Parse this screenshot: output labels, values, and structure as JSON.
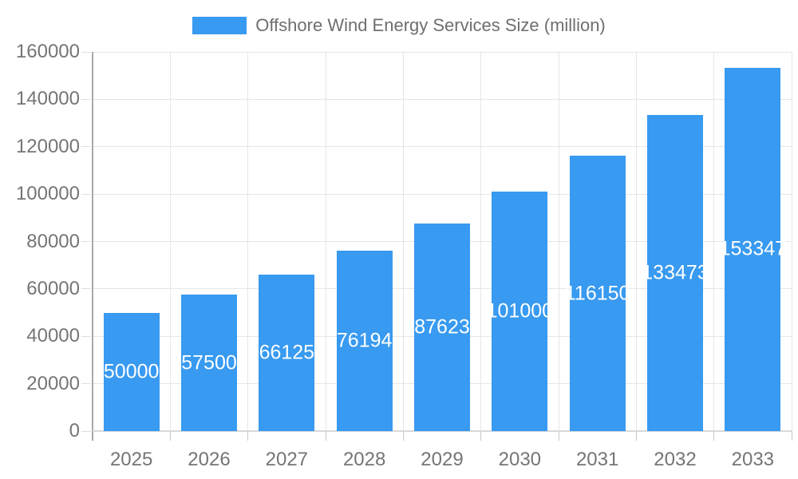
{
  "legend": {
    "label": "Offshore Wind Energy Services Size (million)"
  },
  "chart_data": {
    "type": "bar",
    "title": "Offshore Wind Energy Services Size (million)",
    "categories": [
      "2025",
      "2026",
      "2027",
      "2028",
      "2029",
      "2030",
      "2031",
      "2032",
      "2033"
    ],
    "values": [
      50000,
      57500,
      66125,
      76194,
      87623,
      101000,
      116150,
      133473,
      153347
    ],
    "series": [
      {
        "name": "Offshore Wind Energy Services Size (million)",
        "values": [
          50000,
          57500,
          66125,
          76194,
          87623,
          101000,
          116150,
          133473,
          153347
        ]
      }
    ],
    "xlabel": "",
    "ylabel": "",
    "ylim": [
      0,
      160000
    ],
    "ytick_step": 20000,
    "yticks": [
      0,
      20000,
      40000,
      60000,
      80000,
      100000,
      120000,
      140000,
      160000
    ],
    "grid": true,
    "legend_position": "top",
    "bar_color": "#389af0",
    "bar_label_color": "#ffffff",
    "axis_label_color": "#757575",
    "grid_color": "#e6e6e6",
    "yaxis_line_color": "#a8a8a8",
    "xaxis_line_color": "#d9d9d9",
    "tick_color": "#c8c8c8"
  }
}
